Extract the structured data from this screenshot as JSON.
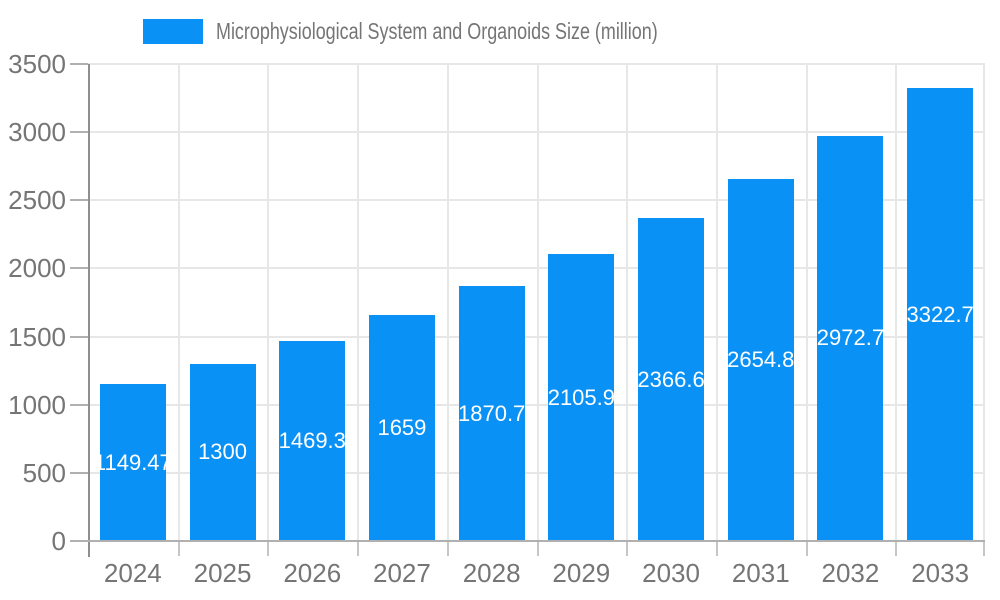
{
  "legend": {
    "label": "Microphysiological System and Organoids Size (million)"
  },
  "chart_data": {
    "type": "bar",
    "title": "Microphysiological System and Organoids Size (million)",
    "categories": [
      "2024",
      "2025",
      "2026",
      "2027",
      "2028",
      "2029",
      "2030",
      "2031",
      "2032",
      "2033"
    ],
    "values": [
      1149.47,
      1300,
      1469.3,
      1659,
      1870.7,
      2105.9,
      2366.6,
      2654.8,
      2972.7,
      3322.7
    ],
    "bar_labels": [
      "1149.47",
      "1300",
      "1469.3",
      "1659",
      "1870.7",
      "2105.9",
      "2366.6",
      "2654.8",
      "2972.7",
      "3322.7"
    ],
    "xlabel": "",
    "ylabel": "",
    "ylim": [
      0,
      3500
    ],
    "ytick_labels": [
      "0",
      "500",
      "1000",
      "1500",
      "2000",
      "2500",
      "3000",
      "3500"
    ],
    "grid": true,
    "legend_position": "top",
    "colors": {
      "bar": "#0a91f5",
      "bar_label": "#ffffff",
      "axis": "#b0b0b0",
      "y_axis": "#8f8f8f",
      "gridline": "#e7e7e7",
      "text": "#757575"
    }
  }
}
